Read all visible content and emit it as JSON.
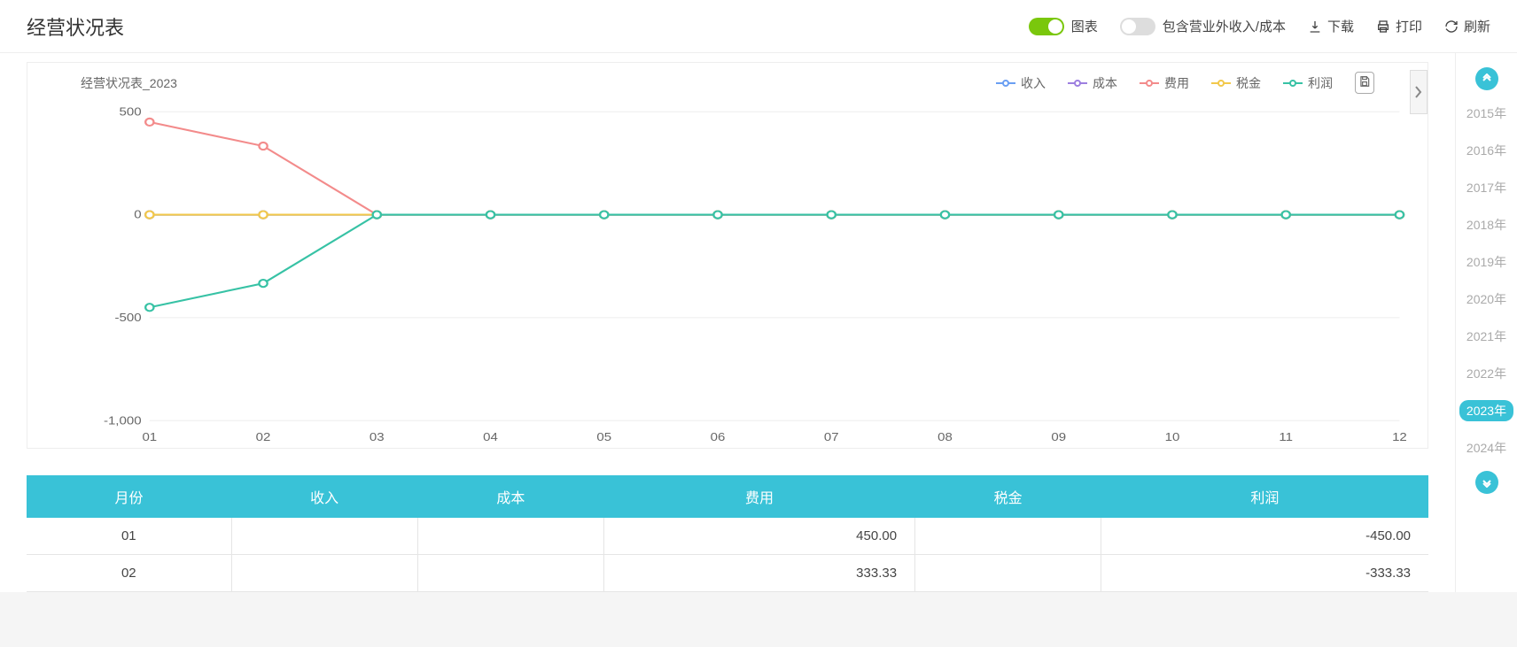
{
  "page": {
    "title": "经营状况表"
  },
  "toolbar": {
    "chart_toggle": {
      "label": "图表",
      "on": true
    },
    "include_nonop": {
      "label": "包含营业外收入/成本",
      "on": false
    },
    "download": "下载",
    "print": "打印",
    "refresh": "刷新"
  },
  "chart": {
    "title": "经营状况表_2023",
    "type": "line",
    "x_categories": [
      "01",
      "02",
      "03",
      "04",
      "05",
      "06",
      "07",
      "08",
      "09",
      "10",
      "11",
      "12"
    ],
    "y_ticks": [
      -1000,
      -500,
      0,
      500
    ],
    "y_tick_labels": [
      "-1,000",
      "-500",
      "0",
      "500"
    ],
    "ylim": [
      -1000,
      500
    ],
    "background_color": "#ffffff",
    "grid_color": "#eeeeee",
    "axis_text_color": "#666666",
    "axis_fontsize": 13,
    "marker_style": "hollow-circle",
    "marker_radius": 4,
    "line_width": 2,
    "series": [
      {
        "key": "income",
        "label": "收入",
        "color": "#6a9ff3",
        "values": [
          0,
          0,
          0,
          0,
          0,
          0,
          0,
          0,
          0,
          0,
          0,
          0
        ]
      },
      {
        "key": "cost",
        "label": "成本",
        "color": "#9d7fe0",
        "values": [
          0,
          0,
          0,
          0,
          0,
          0,
          0,
          0,
          0,
          0,
          0,
          0
        ]
      },
      {
        "key": "expense",
        "label": "费用",
        "color": "#f38b8b",
        "values": [
          450,
          333.33,
          0,
          0,
          0,
          0,
          0,
          0,
          0,
          0,
          0,
          0
        ]
      },
      {
        "key": "tax",
        "label": "税金",
        "color": "#f2c84b",
        "values": [
          0,
          0,
          0,
          0,
          0,
          0,
          0,
          0,
          0,
          0,
          0,
          0
        ]
      },
      {
        "key": "profit",
        "label": "利润",
        "color": "#37c2a5",
        "values": [
          -450,
          -333.33,
          0,
          0,
          0,
          0,
          0,
          0,
          0,
          0,
          0,
          0
        ]
      }
    ],
    "legend_position": "top-right"
  },
  "table": {
    "columns": [
      "月份",
      "收入",
      "成本",
      "费用",
      "税金",
      "利润"
    ],
    "col_align": [
      "center",
      "right",
      "right",
      "right",
      "right",
      "right"
    ],
    "rows": [
      {
        "month": "01",
        "income": "",
        "cost": "",
        "expense": "450.00",
        "tax": "",
        "profit": "-450.00"
      },
      {
        "month": "02",
        "income": "",
        "cost": "",
        "expense": "333.33",
        "tax": "",
        "profit": "-333.33"
      }
    ]
  },
  "year_picker": {
    "years": [
      "2015年",
      "2016年",
      "2017年",
      "2018年",
      "2019年",
      "2020年",
      "2021年",
      "2022年",
      "2023年",
      "2024年"
    ],
    "active": "2023年"
  }
}
